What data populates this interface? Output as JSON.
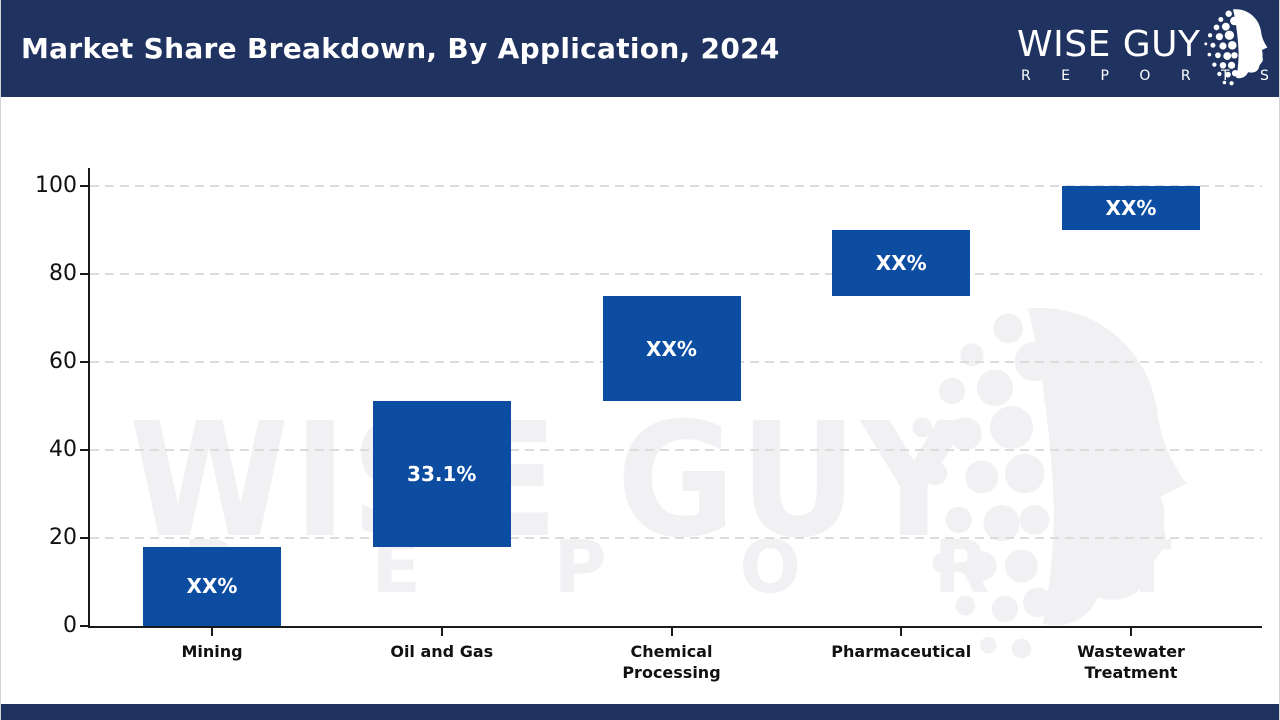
{
  "header": {
    "title": "Market Share Breakdown, By Application, 2024",
    "logo": {
      "line1": "WISE GUY",
      "line2": "R E P O R T S"
    }
  },
  "watermark": {
    "line1": "WISE GUY",
    "line2": "R E P O R T S"
  },
  "colors": {
    "header_bg": "#203360",
    "footer_bg": "#203360",
    "bar": "#0c4da2",
    "bar_label": "#ffffff",
    "grid": "#dcdcdc",
    "axis": "#1a1a1a",
    "watermark": "#f1f1f4"
  },
  "chart_data": {
    "type": "bar",
    "subtype": "waterfall",
    "title": "Market Share Breakdown, By Application, 2024",
    "categories": [
      "Mining",
      "Oil and Gas",
      "Chemical\nProcessing",
      "Pharmaceutical",
      "Wastewater\nTreatment"
    ],
    "segments": [
      {
        "category": "Mining",
        "start": 0,
        "end": 18,
        "value": 18,
        "label": "XX%"
      },
      {
        "category": "Oil and Gas",
        "start": 18,
        "end": 51.1,
        "value": 33.1,
        "label": "33.1%"
      },
      {
        "category": "Chemical Processing",
        "start": 51.1,
        "end": 75,
        "value": 23.9,
        "label": "XX%"
      },
      {
        "category": "Pharmaceutical",
        "start": 75,
        "end": 90,
        "value": 15,
        "label": "XX%"
      },
      {
        "category": "Wastewater Treatment",
        "start": 90,
        "end": 100,
        "value": 10,
        "label": "XX%"
      }
    ],
    "xlabel": "",
    "ylabel": "",
    "ylim": [
      0,
      100
    ],
    "yticks": [
      0,
      20,
      40,
      60,
      80,
      100
    ],
    "grid": "horizontal-dashed",
    "legend": "none"
  }
}
